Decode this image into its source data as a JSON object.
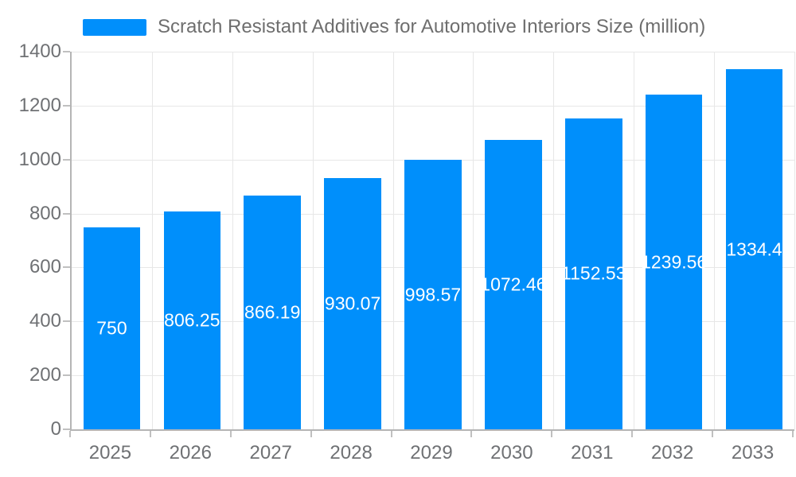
{
  "chart_data": {
    "type": "bar",
    "title": "Scratch Resistant Additives for Automotive Interiors Size (million)",
    "categories": [
      "2025",
      "2026",
      "2027",
      "2028",
      "2029",
      "2030",
      "2031",
      "2032",
      "2033"
    ],
    "values": [
      750,
      806.25,
      866.19,
      930.07,
      998.57,
      1072.46,
      1152.53,
      1239.56,
      1334.4
    ],
    "value_labels": [
      "750",
      "806.25",
      "866.19",
      "930.07",
      "998.57",
      "1072.46",
      "1152.53",
      "1239.56",
      "1334.4"
    ],
    "xlabel": "",
    "ylabel": "",
    "ylim": [
      0,
      1400
    ],
    "ytick_step": 200,
    "yticks": [
      "0",
      "200",
      "400",
      "600",
      "800",
      "1000",
      "1200",
      "1400"
    ],
    "grid": "on",
    "legend_position": "top",
    "bar_color": "#008FFB",
    "value_label_color": "#ffffff",
    "axis_label_color": "#6f7174",
    "gridline_color": "#e7e7e7"
  }
}
